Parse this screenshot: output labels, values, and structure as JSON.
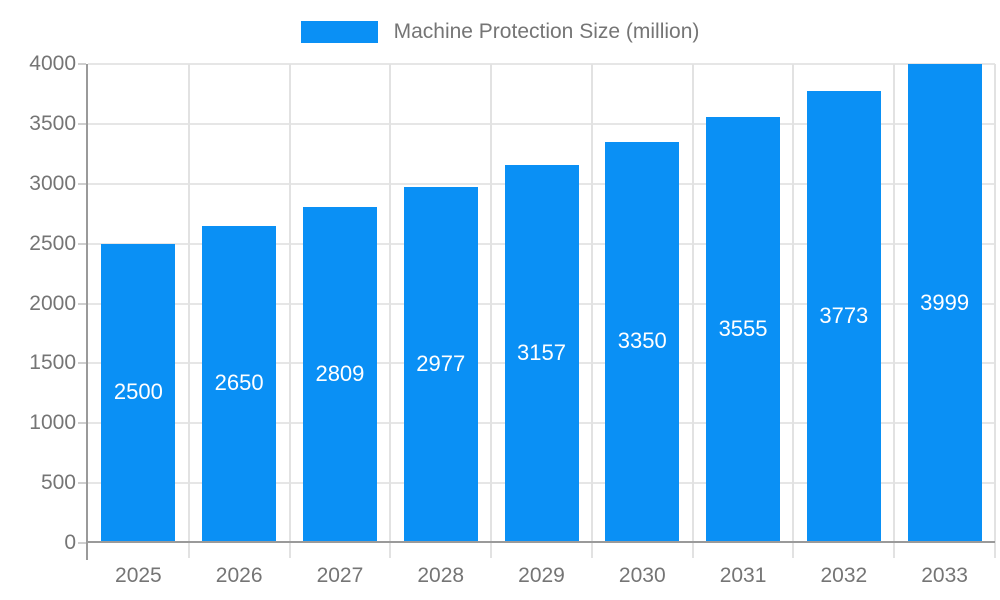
{
  "chart_data": {
    "type": "bar",
    "title": "Machine Protection Size (million)",
    "legend_label": "Machine Protection Size (million)",
    "legend_position": "top",
    "categories": [
      "2025",
      "2026",
      "2027",
      "2028",
      "2029",
      "2030",
      "2031",
      "2032",
      "2033"
    ],
    "values": [
      2500,
      2650,
      2809,
      2977,
      3157,
      3350,
      3555,
      3773,
      3999
    ],
    "xlabel": "",
    "ylabel": "",
    "ylim": [
      0,
      4000
    ],
    "y_ticks": [
      0,
      500,
      1000,
      1500,
      2000,
      2500,
      3000,
      3500,
      4000
    ],
    "grid": "horizontal and vertical gridlines",
    "bar_color": "#0a90f5",
    "bar_label_color": "#ffffff",
    "axis_text_color": "#757575",
    "axis_line_color": "#9a9a9a",
    "gridline_color": "#e6e6e6"
  }
}
